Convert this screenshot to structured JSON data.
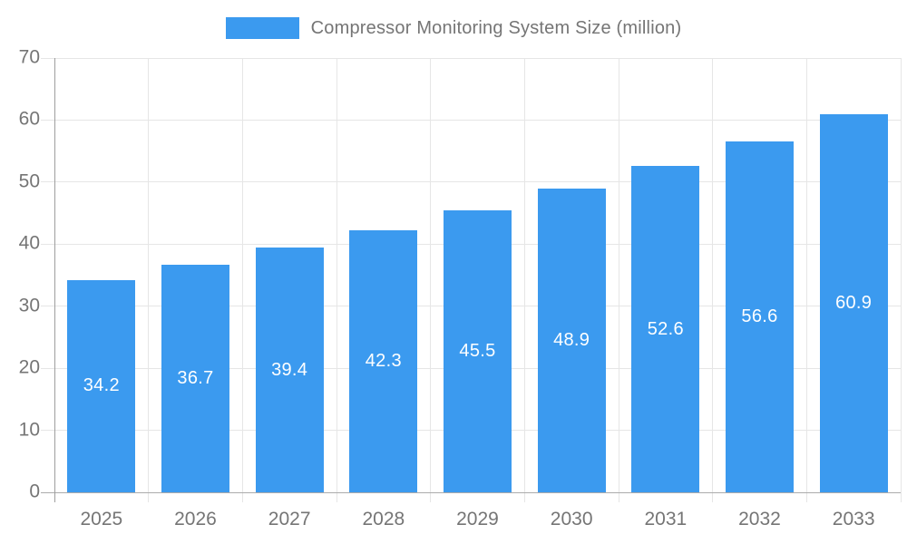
{
  "legend": {
    "label": "Compressor Monitoring System Size (million)"
  },
  "chart_data": {
    "type": "bar",
    "title": "Compressor Monitoring System Size (million)",
    "series_name": "Compressor Monitoring System Size (million)",
    "categories": [
      "2025",
      "2026",
      "2027",
      "2028",
      "2029",
      "2030",
      "2031",
      "2032",
      "2033"
    ],
    "values": [
      34.2,
      36.7,
      39.4,
      42.3,
      45.5,
      48.9,
      52.6,
      56.6,
      60.9
    ],
    "xlabel": "",
    "ylabel": "",
    "ylim": [
      0,
      70
    ],
    "yticks": [
      0,
      10,
      20,
      30,
      40,
      50,
      60,
      70
    ],
    "grid": true,
    "legend_position": "top-center",
    "value_label_position": "inside-center"
  },
  "colors": {
    "bar": "#3B9AEF",
    "gridline": "#E6E6E6",
    "baseline": "#ABABAB",
    "axis_line": "#9E9E9E",
    "axis_text": "#757575",
    "legend_text": "#757575",
    "value_label_text": "#FFFFFF",
    "background": "#FFFFFF"
  }
}
